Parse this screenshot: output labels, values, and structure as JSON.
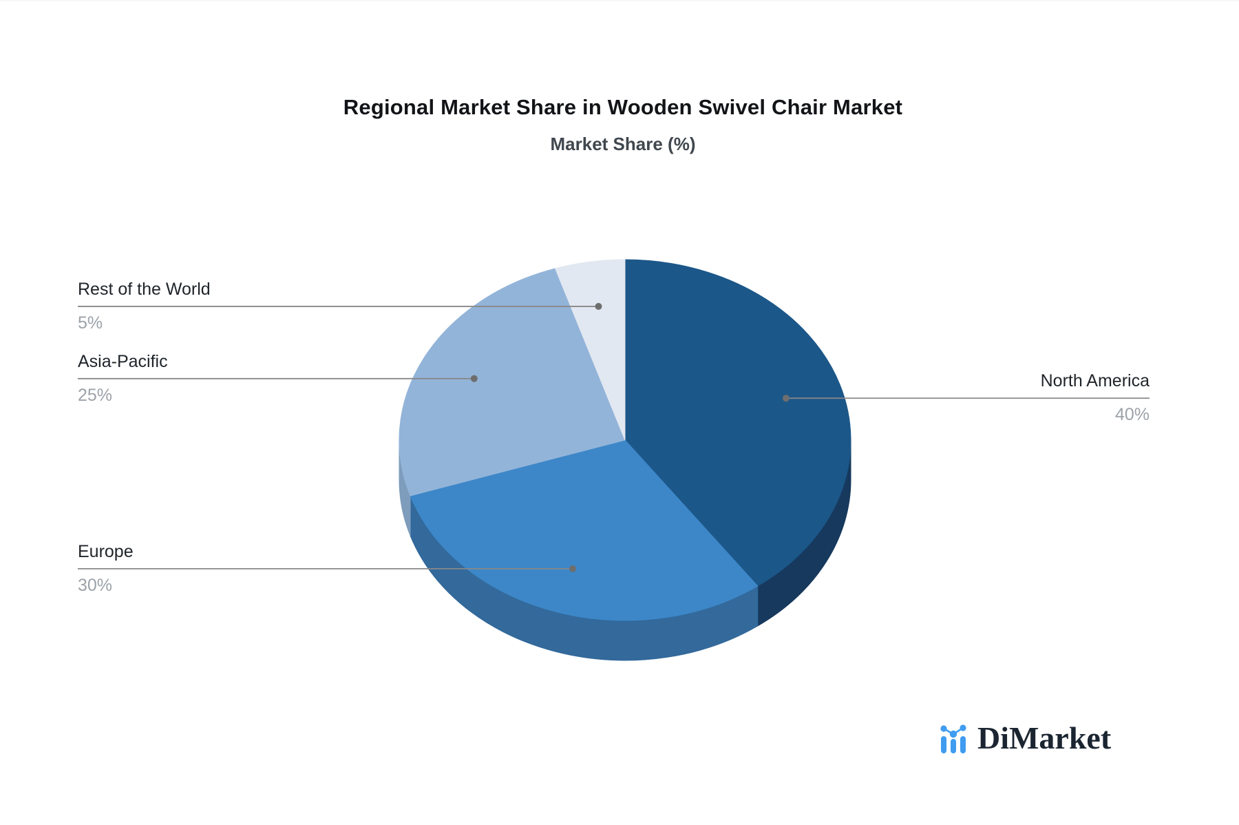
{
  "title": "Regional Market Share in Wooden Swivel Chair Market",
  "subtitle": "Market Share (%)",
  "background_color": "#ffffff",
  "chart_data": {
    "type": "pie",
    "style": "3d",
    "start_angle_deg": 0,
    "direction": "clockwise",
    "labels": [
      "North America",
      "Europe",
      "Asia-Pacific",
      "Rest of the World"
    ],
    "values": [
      40,
      30,
      25,
      5
    ],
    "value_labels": [
      "40%",
      "30%",
      "25%",
      "5%"
    ],
    "colors": [
      "#1C5789",
      "#3D87C8",
      "#93B4D9",
      "#E2E8F1"
    ],
    "side_colors": [
      "#16395D",
      "#33699B",
      "#7E9CBC",
      "#C6CFDD"
    ],
    "leader_line_color": "#888888",
    "leader_dot_color": "#6E6E6E",
    "label_name_color": "#1F2429",
    "label_value_color": "#9CA2A9",
    "legend": "none",
    "data_labels": "leader-lines-outside"
  },
  "branding": {
    "logo_text": "DiMarket",
    "logo_text_color": "#1B2531",
    "logo_icon": "bar-line-chart-icon",
    "logo_icon_color": "#3F9CF0"
  }
}
